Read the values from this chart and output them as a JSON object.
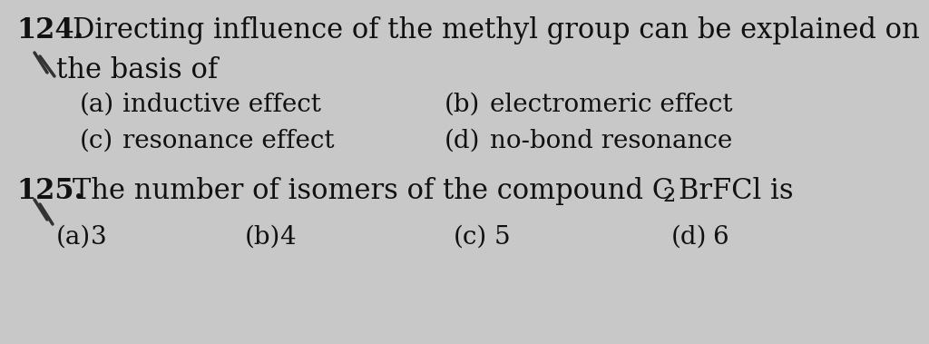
{
  "bg_color": "#c8c8c8",
  "text_color": "#111111",
  "font_size_q": 22,
  "font_size_opt": 20,
  "font_size_sub": 16,
  "q124_num": "124.",
  "q124_line1": "Directing influence of the methyl group can be explained on",
  "q124_line2": "the basis of",
  "q124_a": "(a)",
  "q124_a_text": "inductive effect",
  "q124_b": "(b)",
  "q124_b_text": "electromeric effect",
  "q124_c": "(c)",
  "q124_c_text": "resonance effect",
  "q124_d": "(d)",
  "q124_d_text": "no-bond resonance",
  "q125_num": "125.",
  "q125_line1a": "The number of isomers of the compound C",
  "q125_sub": "2",
  "q125_line1b": "BrFCl is",
  "q125_a": "(a)",
  "q125_a_text": "3",
  "q125_b": "(b)",
  "q125_b_text": "4",
  "q125_c": "(c)",
  "q125_c_text": "5",
  "q125_d": "(d)",
  "q125_d_text": "6",
  "mark_color": "#333333"
}
